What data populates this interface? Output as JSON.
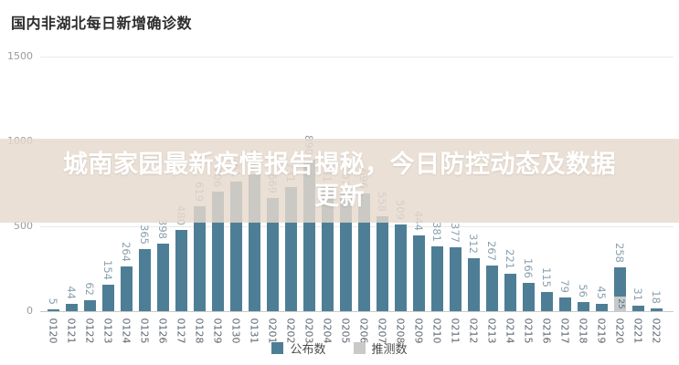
{
  "title": "国内非湖北每日新增确诊数",
  "overlay": {
    "headline": "城南家园最新疫情报告揭秘，今日防控动态及数据更新"
  },
  "legend": [
    {
      "label": "公布数",
      "color": "#4e7e95"
    },
    {
      "label": "推测数",
      "color": "#c9c9c9"
    }
  ],
  "chart_data": {
    "type": "bar",
    "title": "国内非湖北每日新增确诊数",
    "categories": [
      "0120",
      "0121",
      "0122",
      "0123",
      "0124",
      "0125",
      "0126",
      "0127",
      "0128",
      "0129",
      "0130",
      "0131",
      "0201",
      "0202",
      "0203",
      "0204",
      "0205",
      "0206",
      "0207",
      "0208",
      "0209",
      "0210",
      "0211",
      "0212",
      "0213",
      "0214",
      "0215",
      "0216",
      "0217",
      "0218",
      "0219",
      "0220",
      "0221",
      "0222"
    ],
    "series": [
      {
        "name": "公布数",
        "color": "#4e7e95",
        "values": [
          5,
          44,
          62,
          154,
          264,
          365,
          398,
          480,
          619,
          706,
          761,
          806,
          669,
          731,
          890,
          731,
          707,
          696,
          558,
          509,
          444,
          381,
          377,
          312,
          267,
          221,
          166,
          115,
          79,
          56,
          45,
          258,
          31,
          18
        ]
      },
      {
        "name": "推测数",
        "color": "#c9c9c9",
        "values": [
          null,
          null,
          null,
          null,
          null,
          null,
          null,
          null,
          null,
          null,
          null,
          null,
          null,
          null,
          null,
          null,
          null,
          null,
          null,
          null,
          null,
          null,
          null,
          null,
          null,
          null,
          null,
          null,
          null,
          null,
          null,
          25,
          null,
          null
        ]
      }
    ],
    "ylabel": "",
    "xlabel": "",
    "ylim": [
      0,
      1500
    ],
    "y_ticks": [
      0,
      500,
      1000,
      1500
    ],
    "grid": true,
    "legend_position": "bottom",
    "value_labels_rotated": true
  }
}
